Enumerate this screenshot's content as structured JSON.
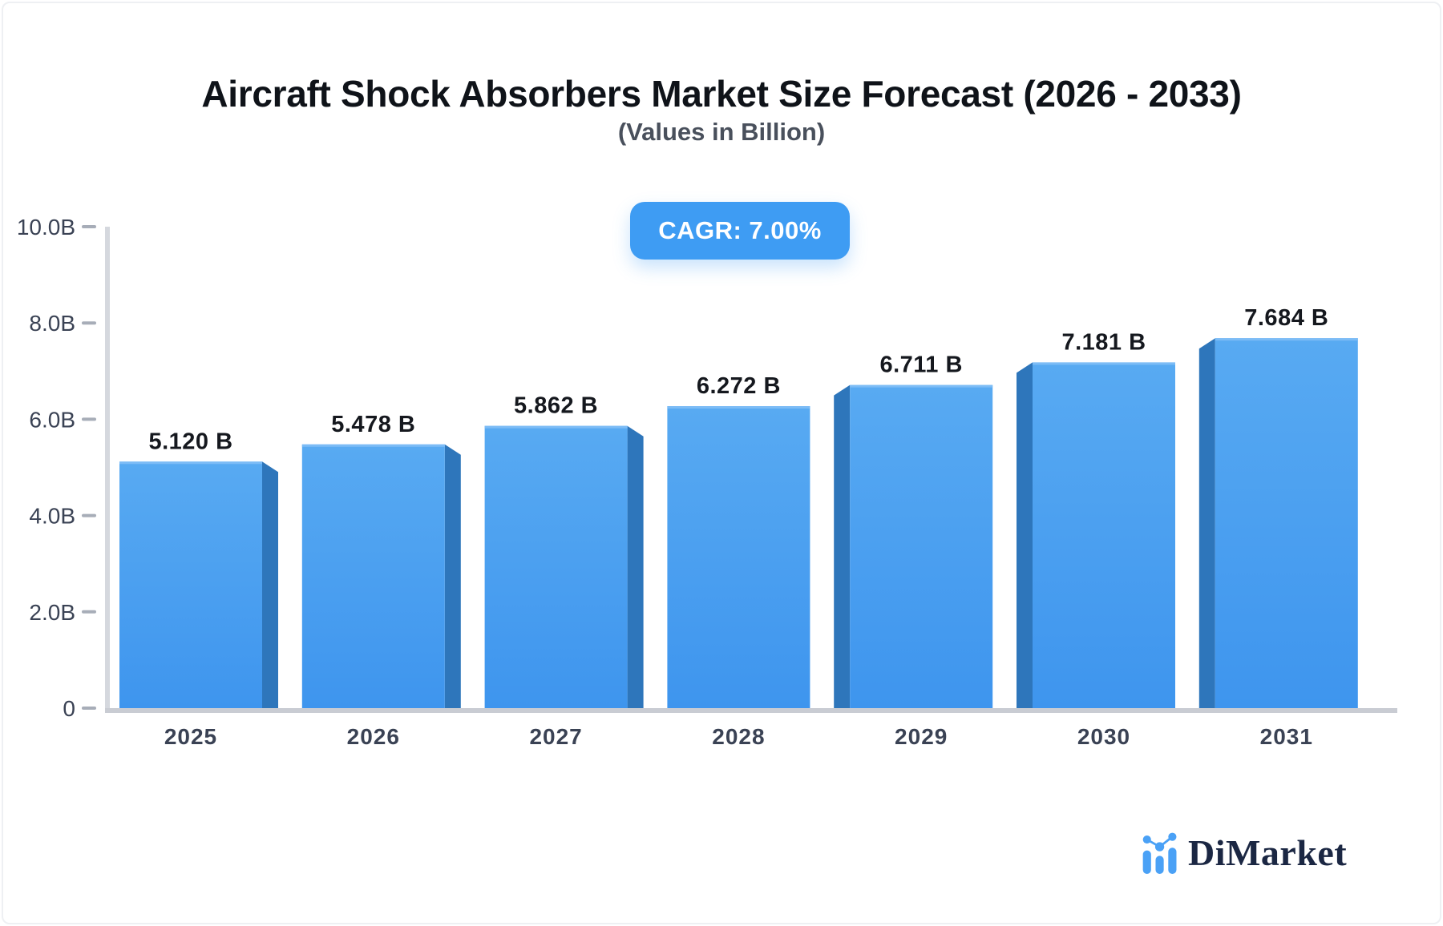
{
  "header": {
    "title": "Aircraft Shock Absorbers Market Size Forecast (2026 - 2033)",
    "subtitle": "(Values in Billion)",
    "cagr_badge": "CAGR: 7.00%"
  },
  "chart_data": {
    "type": "bar",
    "title": "Aircraft Shock Absorbers Market Size Forecast (2026 - 2033)",
    "subtitle": "(Values in Billion)",
    "unit": "Billion",
    "cagr": "7.00%",
    "categories": [
      "2025",
      "2026",
      "2027",
      "2028",
      "2029",
      "2030",
      "2031"
    ],
    "values": [
      5.12,
      5.478,
      5.862,
      6.272,
      6.711,
      7.181,
      7.684
    ],
    "value_labels": [
      "5.120 B",
      "5.478 B",
      "5.862 B",
      "6.272 B",
      "6.711 B",
      "7.181 B",
      "7.684 B"
    ],
    "y_ticks": [
      {
        "label": "10.0B",
        "value": 10
      },
      {
        "label": "8.0B",
        "value": 8
      },
      {
        "label": "6.0B",
        "value": 6
      },
      {
        "label": "4.0B",
        "value": 4
      },
      {
        "label": "2.0B",
        "value": 2
      },
      {
        "label": "0",
        "value": 0
      }
    ],
    "ylim": [
      0,
      10
    ],
    "grid": false,
    "legend": "none",
    "colors": {
      "bar_top": "#58aaf2",
      "bar_bottom": "#3e95ee",
      "bar_top_edge": "#7cbcf6",
      "bar_side": "#2e76bb",
      "axis_line": "#d5d8de",
      "baseline": "#c9ccd3",
      "tick_dash": "#a7adb8",
      "axis_label": "#3a4254",
      "value_label": "#15181e"
    }
  },
  "footer": {
    "brand": "DiMarket",
    "brand_color": "#1b2743",
    "icon": "bar-line-chart-icon",
    "icon_color": "#4aa1f6"
  }
}
